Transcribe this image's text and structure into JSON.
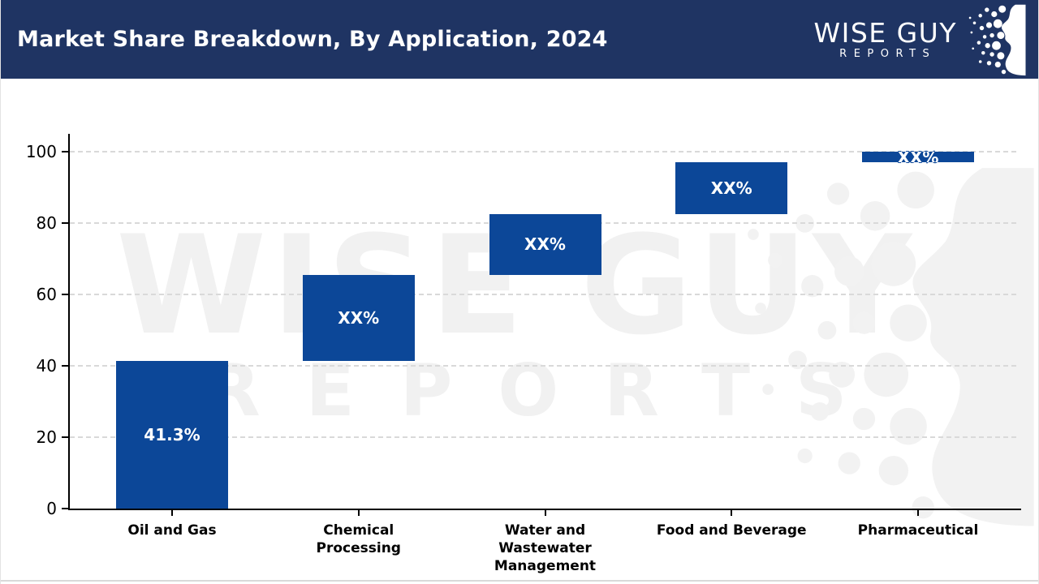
{
  "header": {
    "title": "Market Share Breakdown, By Application, 2024",
    "logo": {
      "brand": "WISE GUY",
      "sub": "REPORTS"
    }
  },
  "watermark": {
    "brand": "WISE GUY",
    "sub": "REPORTS"
  },
  "colors": {
    "header_navy": "#1f3463",
    "bar_blue": "#0c4798",
    "gridline_gray": "#d9d9d9",
    "watermark_gray": "#f1f1f1",
    "axis_black": "#000000",
    "bar_label_white": "#ffffff"
  },
  "chart_data": {
    "type": "bar",
    "variant": "waterfall",
    "title": "Market Share Breakdown, By Application, 2024",
    "categories": [
      "Oil and Gas",
      "Chemical Processing",
      "Water and Wastewater Management",
      "Food and Beverage",
      "Pharmaceutical"
    ],
    "category_label_lines": [
      [
        "Oil and Gas"
      ],
      [
        "Chemical",
        "Processing"
      ],
      [
        "Water and",
        "Wastewater",
        "Management"
      ],
      [
        "Food and Beverage"
      ],
      [
        "Pharmaceutical"
      ]
    ],
    "series": [
      {
        "name": "Market share (%)",
        "values": [
          41.3,
          24.2,
          17.0,
          14.5,
          3.0
        ]
      }
    ],
    "cumulative_starts": [
      0,
      41.3,
      65.5,
      82.5,
      97.0
    ],
    "cumulative_ends": [
      41.3,
      65.5,
      82.5,
      97.0,
      100.0
    ],
    "bar_labels": [
      "41.3%",
      "XX%",
      "XX%",
      "XX%",
      "XX%"
    ],
    "yticks": [
      0,
      20,
      40,
      60,
      80,
      100
    ],
    "ylim": [
      0,
      107
    ],
    "xlabel": "",
    "ylabel": "",
    "grid": "horizontal-dashed",
    "legend": false
  }
}
